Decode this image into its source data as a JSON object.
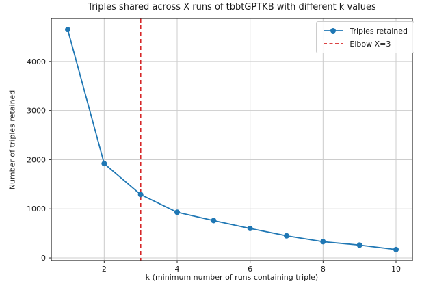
{
  "chart_data": {
    "type": "line",
    "title": "Triples shared across X runs of tbbtGPTKB with different k values",
    "xlabel": "k (minimum number of runs containing triple)",
    "ylabel": "Number of triples retained",
    "x": [
      1,
      2,
      3,
      4,
      5,
      6,
      7,
      8,
      9,
      10
    ],
    "series": [
      {
        "name": "Triples retained",
        "values": [
          4650,
          1920,
          1290,
          930,
          760,
          600,
          450,
          330,
          260,
          170
        ],
        "color": "#1f77b4",
        "marker": "circle"
      }
    ],
    "vline": {
      "x": 3,
      "label": "Elbow X=3",
      "color": "#d62728",
      "style": "dashed"
    },
    "xticks": [
      2,
      4,
      6,
      8,
      10
    ],
    "yticks": [
      0,
      1000,
      2000,
      3000,
      4000
    ],
    "xlim": [
      0.55,
      10.45
    ],
    "ylim": [
      -55,
      4875
    ],
    "grid": true,
    "grid_color": "#cccccc",
    "spine_color": "#262626",
    "legend_position": "upper right"
  }
}
